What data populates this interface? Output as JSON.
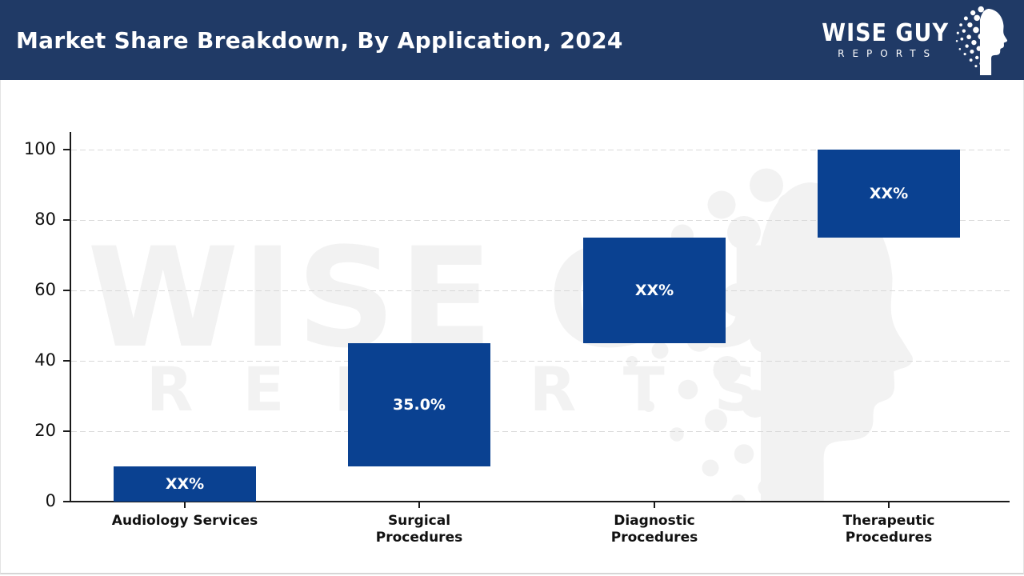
{
  "header": {
    "title": "Market Share Breakdown, By Application, 2024",
    "bg_color": "#203a66",
    "logo": {
      "name": "WISE GUY",
      "sub": "REPORTS"
    }
  },
  "watermark": {
    "big": "WISE GU",
    "sub": "REPORTS"
  },
  "chart_data": {
    "type": "bar",
    "variant": "waterfall",
    "title": "Market Share Breakdown, By Application, 2024",
    "categories": [
      "Audiology Services",
      "Surgical Procedures",
      "Diagnostic Procedures",
      "Therapeutic Procedures"
    ],
    "category_lines": [
      [
        "Audiology Services"
      ],
      [
        "Surgical",
        "Procedures"
      ],
      [
        "Diagnostic",
        "Procedures"
      ],
      [
        "Therapeutic",
        "Procedures"
      ]
    ],
    "series": [
      {
        "name": "Market Share (%)",
        "segments": [
          {
            "category": "Audiology Services",
            "start": 0,
            "end": 10,
            "label": "XX%"
          },
          {
            "category": "Surgical Procedures",
            "start": 10,
            "end": 45,
            "label": "35.0%"
          },
          {
            "category": "Diagnostic Procedures",
            "start": 45,
            "end": 75,
            "label": "XX%"
          },
          {
            "category": "Therapeutic Procedures",
            "start": 75,
            "end": 100,
            "label": "XX%"
          }
        ]
      }
    ],
    "xlabel": "",
    "ylabel": "",
    "ylim": [
      0,
      105
    ],
    "yticks": [
      0,
      20,
      40,
      60,
      80,
      100
    ],
    "grid": {
      "horizontal": true,
      "style": "dashed"
    },
    "legend": "none",
    "colors": {
      "bar": "#0a4191",
      "bar_label": "#ffffff",
      "grid": "#d9d9d9",
      "axis": "#1a1a1a",
      "tick_label": "#111111",
      "header_bg": "#203a66",
      "watermark": "#f2f2f2"
    }
  }
}
